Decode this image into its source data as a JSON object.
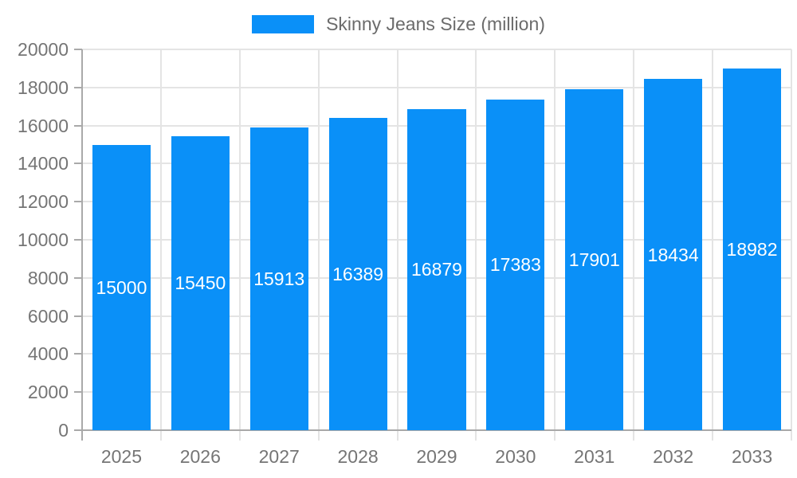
{
  "chart_data": {
    "type": "bar",
    "title": "Skinny Jeans Size (million)",
    "legend": {
      "label": "Skinny Jeans Size (million)",
      "position": "top"
    },
    "categories": [
      "2025",
      "2026",
      "2027",
      "2028",
      "2029",
      "2030",
      "2031",
      "2032",
      "2033"
    ],
    "series": [
      {
        "name": "Skinny Jeans Size (million)",
        "values": [
          15000,
          15450,
          15913,
          16389,
          16879,
          17383,
          17901,
          18434,
          18982
        ]
      }
    ],
    "value_labels_shown": true,
    "xlabel": "",
    "ylabel": "",
    "ylim": [
      0,
      20000
    ],
    "ytick_step": 2000,
    "yticks": [
      0,
      2000,
      4000,
      6000,
      8000,
      10000,
      12000,
      14000,
      16000,
      18000,
      20000
    ],
    "grid": true,
    "colors": {
      "bar": "#0a90f8",
      "grid": "#e4e4e4",
      "axis": "#a9a9a9",
      "tick_label": "#757575",
      "legend_text": "#6b6b6b",
      "value_label": "#ffffff"
    }
  }
}
